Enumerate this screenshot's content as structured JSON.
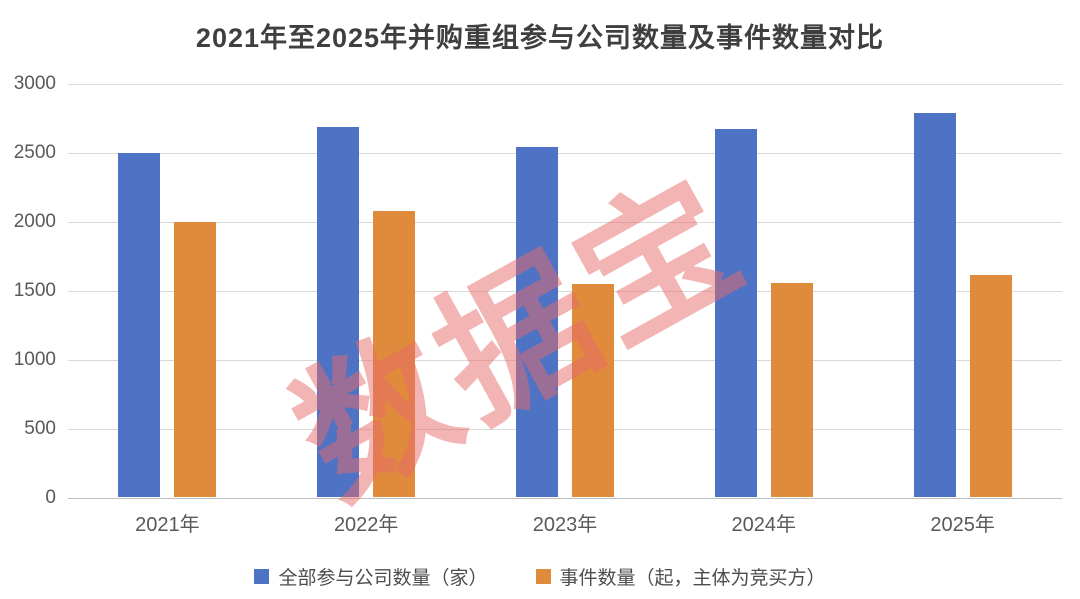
{
  "chart_data": {
    "type": "bar",
    "title": "2021年至2025年并购重组参与公司数量及事件数量对比",
    "categories": [
      "2021年",
      "2022年",
      "2023年",
      "2024年",
      "2025年"
    ],
    "series": [
      {
        "name": "全部参与公司数量（家）",
        "color": "#4f73c4",
        "values": [
          2495,
          2680,
          2535,
          2670,
          2780
        ]
      },
      {
        "name": "事件数量（起，主体为竞买方）",
        "color": "#e08a3c",
        "values": [
          1995,
          2070,
          1540,
          1550,
          1610
        ]
      }
    ],
    "ylim": [
      0,
      3000
    ],
    "yticks": [
      0,
      500,
      1000,
      1500,
      2000,
      2500,
      3000
    ],
    "xlabel": "",
    "ylabel": "",
    "grid": true,
    "legend_position": "bottom",
    "watermark": "数据宝",
    "colors": {
      "gridline": "#d9d9d9",
      "axis_line": "#bfbfbf",
      "tick_text": "#595959",
      "title_text": "#3f3f3f",
      "watermark_pink": "#e76a6a"
    }
  }
}
